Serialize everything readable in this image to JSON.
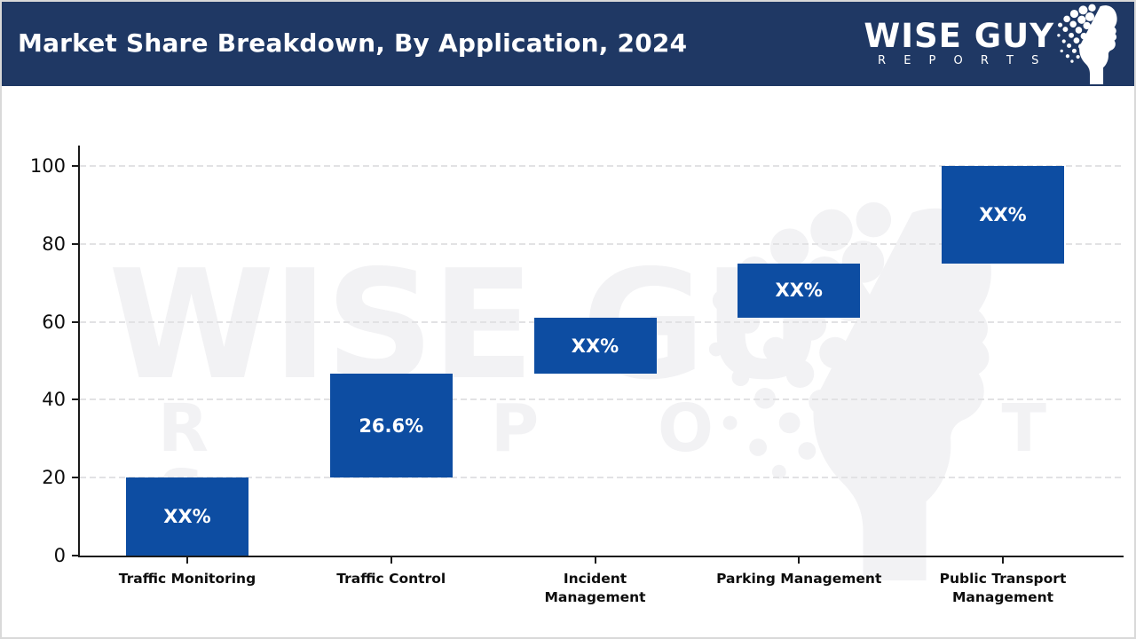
{
  "header": {
    "title": "Market Share Breakdown, By Application, 2024",
    "logo": {
      "brand": "WISE GUY",
      "sub": "R E P O R T S"
    }
  },
  "watermark": {
    "brand": "WISE GUY",
    "sub": "R E P O R T S"
  },
  "chart_data": {
    "type": "bar",
    "subtype": "waterfall",
    "title": "Market Share Breakdown, By Application, 2024",
    "unit": "percent market share",
    "categories": [
      "Traffic Monitoring",
      "Traffic Control",
      "Incident Management",
      "Parking Management",
      "Public Transport Management"
    ],
    "category_lines": [
      [
        "Traffic Monitoring"
      ],
      [
        "Traffic Control"
      ],
      [
        "Incident",
        "Management"
      ],
      [
        "Parking Management"
      ],
      [
        "Public Transport",
        "Management"
      ]
    ],
    "segments": [
      {
        "category": "Traffic Monitoring",
        "start": 0,
        "end": 20,
        "value": 20,
        "label": "XX%"
      },
      {
        "category": "Traffic Control",
        "start": 20,
        "end": 46.6,
        "value": 26.6,
        "label": "26.6%"
      },
      {
        "category": "Incident Management",
        "start": 46.6,
        "end": 61,
        "value": 14.4,
        "label": "XX%"
      },
      {
        "category": "Parking Management",
        "start": 61,
        "end": 75,
        "value": 14,
        "label": "XX%"
      },
      {
        "category": "Public Transport Management",
        "start": 75,
        "end": 100,
        "value": 25,
        "label": "XX%"
      }
    ],
    "yticks": [
      0,
      20,
      40,
      60,
      80,
      100
    ],
    "ylim": [
      0,
      105.2
    ],
    "xlabel": "",
    "ylabel": "",
    "legend": null,
    "grid": "horizontal-dashed",
    "colors": {
      "bar": "#0d4da2",
      "bar_label": "#ffffff",
      "header_bg": "#1f3864",
      "header_text": "#ffffff",
      "axis": "#1a1a1a",
      "gridline": "#e2e2e4",
      "watermark": "#f2f2f4"
    }
  }
}
